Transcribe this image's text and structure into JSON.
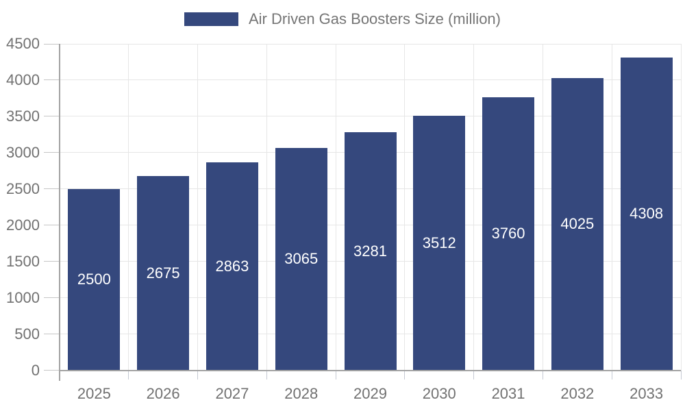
{
  "chart_data": {
    "type": "bar",
    "title": "Air Driven Gas Boosters Size (million)",
    "categories": [
      "2025",
      "2026",
      "2027",
      "2028",
      "2029",
      "2030",
      "2031",
      "2032",
      "2033"
    ],
    "values": [
      2500,
      2675,
      2863,
      3065,
      3281,
      3512,
      3760,
      4025,
      4308
    ],
    "xlabel": "",
    "ylabel": "",
    "ylim": [
      0,
      4500
    ],
    "yticks": [
      0,
      500,
      1000,
      1500,
      2000,
      2500,
      3000,
      3500,
      4000,
      4500
    ],
    "grid": true,
    "legend_position": "top-center",
    "value_labels": "inside-center",
    "bar_color": "#35487D",
    "value_label_color": "#FFFFFF",
    "axis_label_color": "#717171",
    "title_color": "#757575",
    "gridline_color": "#E6E6E6",
    "axis_line_color": "#A3A3A3",
    "background_color": "#FFFFFF"
  }
}
